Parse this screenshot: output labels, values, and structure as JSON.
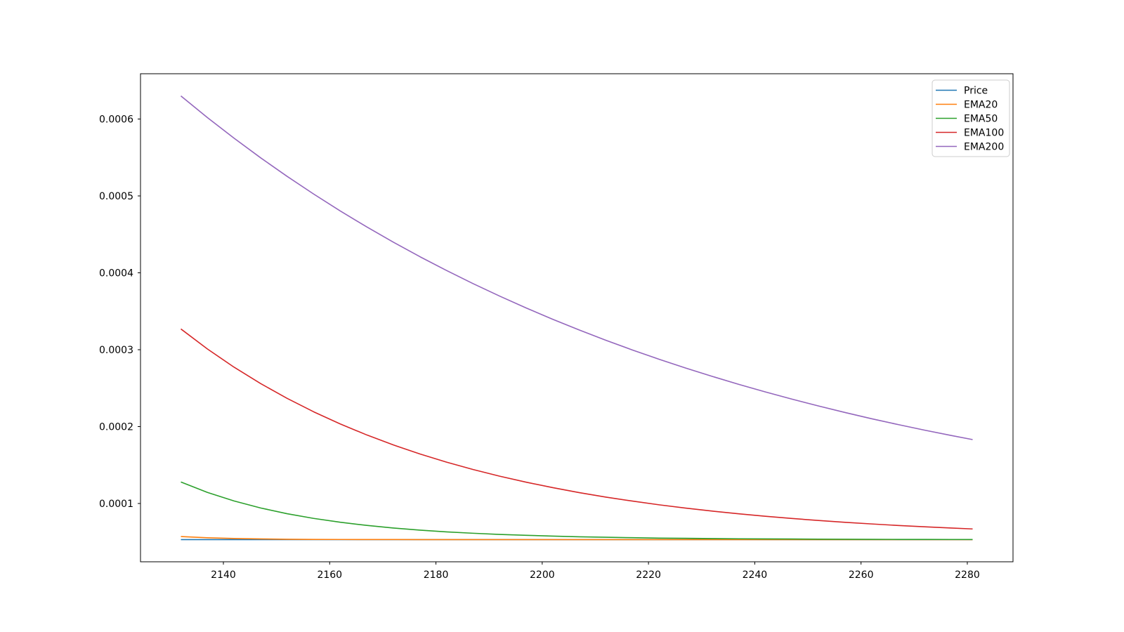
{
  "chart_data": {
    "type": "line",
    "title": "",
    "xlabel": "",
    "ylabel": "",
    "grid": false,
    "background_color": "#ffffff",
    "axis_color": "#000000",
    "xlim": [
      2124.4,
      2288.6
    ],
    "ylim": [
      2.42e-05,
      0.0006589
    ],
    "x_ticks": [
      2140,
      2160,
      2180,
      2200,
      2220,
      2240,
      2260,
      2280
    ],
    "y_ticks": [
      0.0001,
      0.0002,
      0.0003,
      0.0004,
      0.0005,
      0.0006
    ],
    "legend": {
      "position": "upper right",
      "border_color": "#cccccc",
      "fill_color": "#ffffff",
      "entries": [
        "Price",
        "EMA20",
        "EMA50",
        "EMA100",
        "EMA200"
      ]
    },
    "x": [
      2132,
      2137,
      2142,
      2147,
      2152,
      2157,
      2162,
      2167,
      2172,
      2177,
      2182,
      2187,
      2192,
      2197,
      2202,
      2207,
      2212,
      2217,
      2222,
      2227,
      2232,
      2237,
      2242,
      2247,
      2252,
      2257,
      2262,
      2267,
      2272,
      2277,
      2281
    ],
    "series": [
      {
        "name": "Price",
        "color": "#1f77b4",
        "values": [
          5.3e-05,
          5.3e-05,
          5.3e-05,
          5.3e-05,
          5.3e-05,
          5.3e-05,
          5.3e-05,
          5.3e-05,
          5.3e-05,
          5.3e-05,
          5.3e-05,
          5.3e-05,
          5.3e-05,
          5.3e-05,
          5.3e-05,
          5.3e-05,
          5.3e-05,
          5.3e-05,
          5.3e-05,
          5.3e-05,
          5.3e-05,
          5.3e-05,
          5.3e-05,
          5.3e-05,
          5.3e-05,
          5.3e-05,
          5.3e-05,
          5.3e-05,
          5.3e-05,
          5.3e-05,
          5.3e-05
        ]
      },
      {
        "name": "EMA20",
        "color": "#ff7f0e",
        "values": [
          5.7e-05,
          5.54e-05,
          5.45e-05,
          5.39e-05,
          5.35e-05,
          5.33e-05,
          5.32e-05,
          5.31e-05,
          5.31e-05,
          5.3e-05,
          5.3e-05,
          5.3e-05,
          5.3e-05,
          5.3e-05,
          5.3e-05,
          5.3e-05,
          5.3e-05,
          5.3e-05,
          5.3e-05,
          5.3e-05,
          5.3e-05,
          5.3e-05,
          5.3e-05,
          5.3e-05,
          5.3e-05,
          5.3e-05,
          5.3e-05,
          5.3e-05,
          5.3e-05,
          5.3e-05,
          5.3e-05
        ]
      },
      {
        "name": "EMA50",
        "color": "#2ca02c",
        "values": [
          0.000128,
          0.0001144,
          0.0001033,
          9.42e-05,
          8.67e-05,
          8.06e-05,
          7.56e-05,
          7.15e-05,
          6.81e-05,
          6.54e-05,
          6.31e-05,
          6.13e-05,
          5.98e-05,
          5.86e-05,
          5.76e-05,
          5.67e-05,
          5.61e-05,
          5.55e-05,
          5.5e-05,
          5.47e-05,
          5.44e-05,
          5.41e-05,
          5.39e-05,
          5.38e-05,
          5.36e-05,
          5.35e-05,
          5.34e-05,
          5.33e-05,
          5.33e-05,
          5.32e-05,
          5.32e-05
        ]
      },
      {
        "name": "EMA100",
        "color": "#d62728",
        "values": [
          0.000327,
          0.0003009,
          0.0002773,
          0.000256,
          0.0002367,
          0.0002192,
          0.0002034,
          0.0001891,
          0.0001761,
          0.0001644,
          0.0001538,
          0.0001442,
          0.0001355,
          0.0001277,
          0.0001206,
          0.0001141,
          0.0001083,
          0.0001031,
          9.83e-05,
          9.4e-05,
          9.01e-05,
          8.66e-05,
          8.34e-05,
          8.05e-05,
          7.79e-05,
          7.55e-05,
          7.34e-05,
          7.14e-05,
          6.97e-05,
          6.81e-05,
          6.69e-05
        ]
      },
      {
        "name": "EMA200",
        "color": "#9467bd",
        "values": [
          0.00063,
          0.0006018,
          0.0005751,
          0.0005496,
          0.0005254,
          0.0005024,
          0.0004804,
          0.0004596,
          0.0004398,
          0.0004209,
          0.000403,
          0.0003859,
          0.0003697,
          0.0003542,
          0.0003395,
          0.0003256,
          0.0003122,
          0.0002996,
          0.0002876,
          0.0002761,
          0.0002653,
          0.0002549,
          0.0002451,
          0.0002357,
          0.0002268,
          0.0002183,
          0.0002102,
          0.0002026,
          0.0001953,
          0.0001884,
          0.0001831
        ]
      }
    ]
  }
}
